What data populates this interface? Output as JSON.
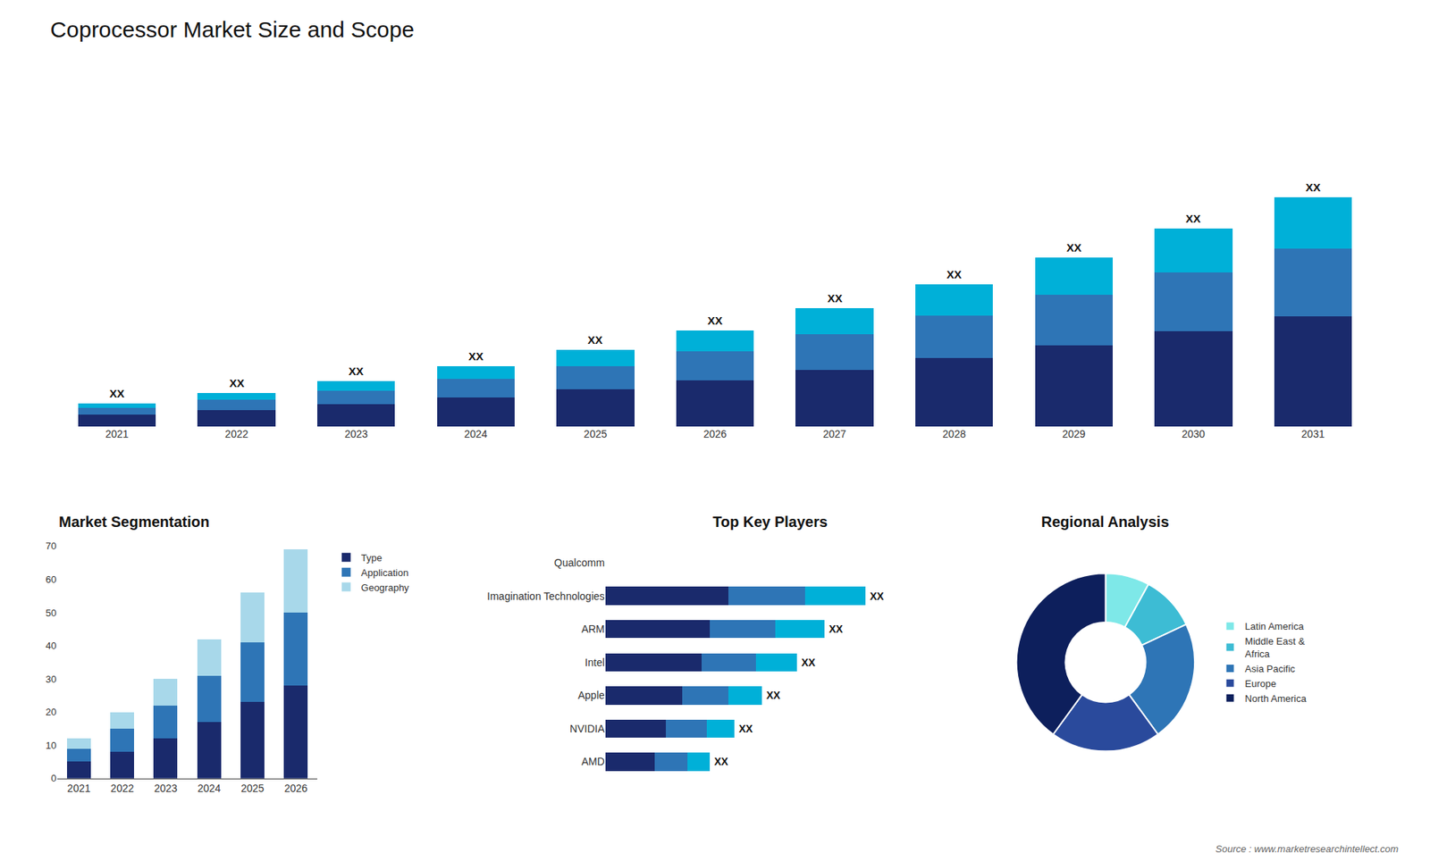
{
  "chart_data": [
    {
      "type": "bar",
      "title": "Coprocessor Market Size and Scope",
      "stacked": true,
      "categories": [
        "2021",
        "2022",
        "2023",
        "2024",
        "2025",
        "2026",
        "2027",
        "2028",
        "2029",
        "2030",
        "2031"
      ],
      "series": [
        {
          "color": "#1a2a6c",
          "values": [
            1.0,
            1.4,
            1.9,
            2.5,
            3.2,
            4.0,
            4.9,
            5.9,
            7.0,
            8.2,
            9.5
          ]
        },
        {
          "color": "#2e75b6",
          "values": [
            0.6,
            0.9,
            1.2,
            1.6,
            2.0,
            2.5,
            3.1,
            3.7,
            4.4,
            5.1,
            5.9
          ]
        },
        {
          "color": "#00b0d8",
          "values": [
            0.4,
            0.6,
            0.8,
            1.1,
            1.4,
            1.8,
            2.2,
            2.7,
            3.2,
            3.8,
            4.4
          ]
        }
      ],
      "annotations": [
        {
          "category": "2021",
          "text": "XX"
        },
        {
          "category": "2022",
          "text": "XX"
        },
        {
          "category": "2023",
          "text": "XX"
        },
        {
          "category": "2024",
          "text": "XX"
        },
        {
          "category": "2025",
          "text": "XX"
        },
        {
          "category": "2026",
          "text": "XX"
        },
        {
          "category": "2027",
          "text": "XX"
        },
        {
          "category": "2028",
          "text": "XX"
        },
        {
          "category": "2029",
          "text": "XX"
        },
        {
          "category": "2030",
          "text": "XX"
        },
        {
          "category": "2031",
          "text": "XX"
        },
        {
          "text": "Source : www.marketresearchintellect.com"
        }
      ],
      "ylim": [
        0,
        23.3
      ],
      "tick_labels": "x",
      "grid": false
    },
    {
      "type": "bar",
      "title": "Market Segmentation",
      "stacked": true,
      "categories": [
        "2021",
        "2022",
        "2023",
        "2024",
        "2025",
        "2026"
      ],
      "series": [
        {
          "name": "Type",
          "color": "#1a2a6c",
          "values": [
            5,
            8,
            12,
            17,
            23,
            28
          ]
        },
        {
          "name": "Application",
          "color": "#2e75b6",
          "values": [
            4,
            7,
            10,
            14,
            18,
            22
          ]
        },
        {
          "name": "Geography",
          "color": "#a8d8ea",
          "values": [
            3,
            5,
            8,
            11,
            15,
            19
          ]
        }
      ],
      "ylim": [
        0,
        70
      ],
      "yticks": [
        0,
        10,
        20,
        30,
        40,
        50,
        60,
        70
      ],
      "grid": false,
      "legend": "right"
    },
    {
      "type": "bar",
      "title": "Top Key Players",
      "orientation": "horizontal",
      "stacked": true,
      "categories": [
        "Qualcomm",
        "Imagination Technologies",
        "ARM",
        "Intel",
        "Apple",
        "NVIDIA",
        "AMD"
      ],
      "series": [
        {
          "color": "#1a2a6c",
          "values": [
            0,
            4.5,
            3.8,
            3.5,
            2.8,
            2.2,
            1.8
          ]
        },
        {
          "color": "#2e75b6",
          "values": [
            0,
            2.8,
            2.4,
            2.0,
            1.7,
            1.5,
            1.2
          ]
        },
        {
          "color": "#00b0d8",
          "values": [
            0,
            2.2,
            1.8,
            1.5,
            1.2,
            1.0,
            0.8
          ]
        }
      ],
      "annotations": [
        {
          "category": "Imagination Technologies",
          "text": "XX"
        },
        {
          "category": "ARM",
          "text": "XX"
        },
        {
          "category": "Intel",
          "text": "XX"
        },
        {
          "category": "Apple",
          "text": "XX"
        },
        {
          "category": "NVIDIA",
          "text": "XX"
        },
        {
          "category": "AMD",
          "text": "XX"
        }
      ],
      "xlim": [
        0,
        12
      ],
      "tick_labels": "y",
      "grid": false
    },
    {
      "type": "pie",
      "title": "Regional Analysis",
      "categories": [
        "Latin America",
        "Middle East &\nAfrica",
        "Asia Pacific",
        "Europe",
        "North America"
      ],
      "values": [
        8,
        10,
        22,
        20,
        40
      ],
      "colors": [
        "#7ee8e8",
        "#3dbcd4",
        "#2e75b6",
        "#2a4a9c",
        "#0d1f5c"
      ],
      "legend": "right"
    }
  ]
}
